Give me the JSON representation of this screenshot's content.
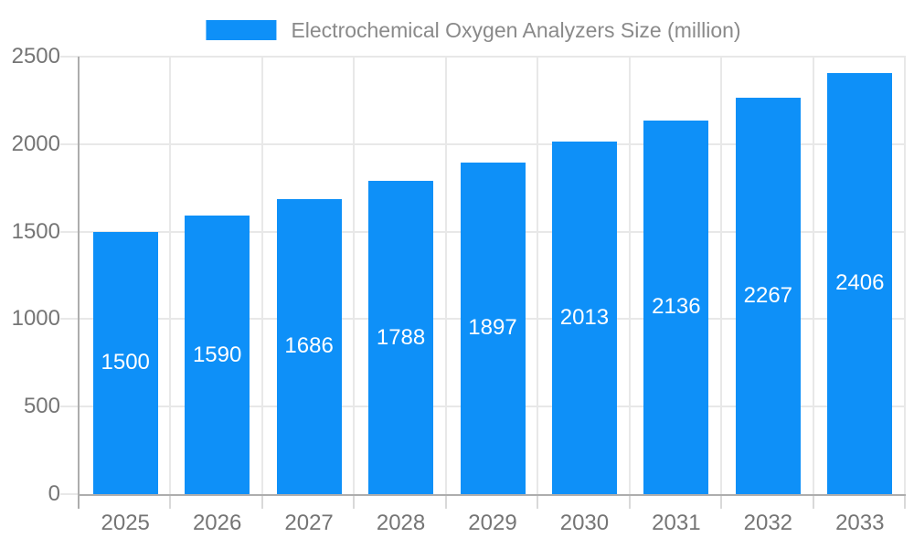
{
  "legend": {
    "label": "Electrochemical Oxygen Analyzers Size (million)"
  },
  "colors": {
    "bar": "#0e90f8",
    "axis_line": "#adadad",
    "grid": "#e8e8e8",
    "x_tick": "#d9d9d9",
    "axis_text": "#757575",
    "legend_text": "#8a8a8a",
    "value_label": "#ffffff",
    "background": "#ffffff"
  },
  "chart_data": {
    "type": "bar",
    "title": "Electrochemical Oxygen Analyzers Size (million)",
    "categories": [
      "2025",
      "2026",
      "2027",
      "2028",
      "2029",
      "2030",
      "2031",
      "2032",
      "2033"
    ],
    "series": [
      {
        "name": "Electrochemical Oxygen Analyzers Size (million)",
        "values": [
          1500,
          1590,
          1686,
          1788,
          1897,
          2013,
          2136,
          2267,
          2406
        ]
      }
    ],
    "values": [
      1500,
      1590,
      1686,
      1788,
      1897,
      2013,
      2136,
      2267,
      2406
    ],
    "value_labels": [
      "1500",
      "1590",
      "1686",
      "1788",
      "1897",
      "2013",
      "2136",
      "2267",
      "2406"
    ],
    "xlabel": "",
    "ylabel": "",
    "ylim": [
      0,
      2500
    ],
    "yticks": [
      0,
      500,
      1000,
      1500,
      2000,
      2500
    ],
    "ytick_labels": [
      "0",
      "500",
      "1000",
      "1500",
      "2000",
      "2500"
    ],
    "grid": true,
    "legend_position": "top-center",
    "value_label_position": "inside-middle"
  }
}
